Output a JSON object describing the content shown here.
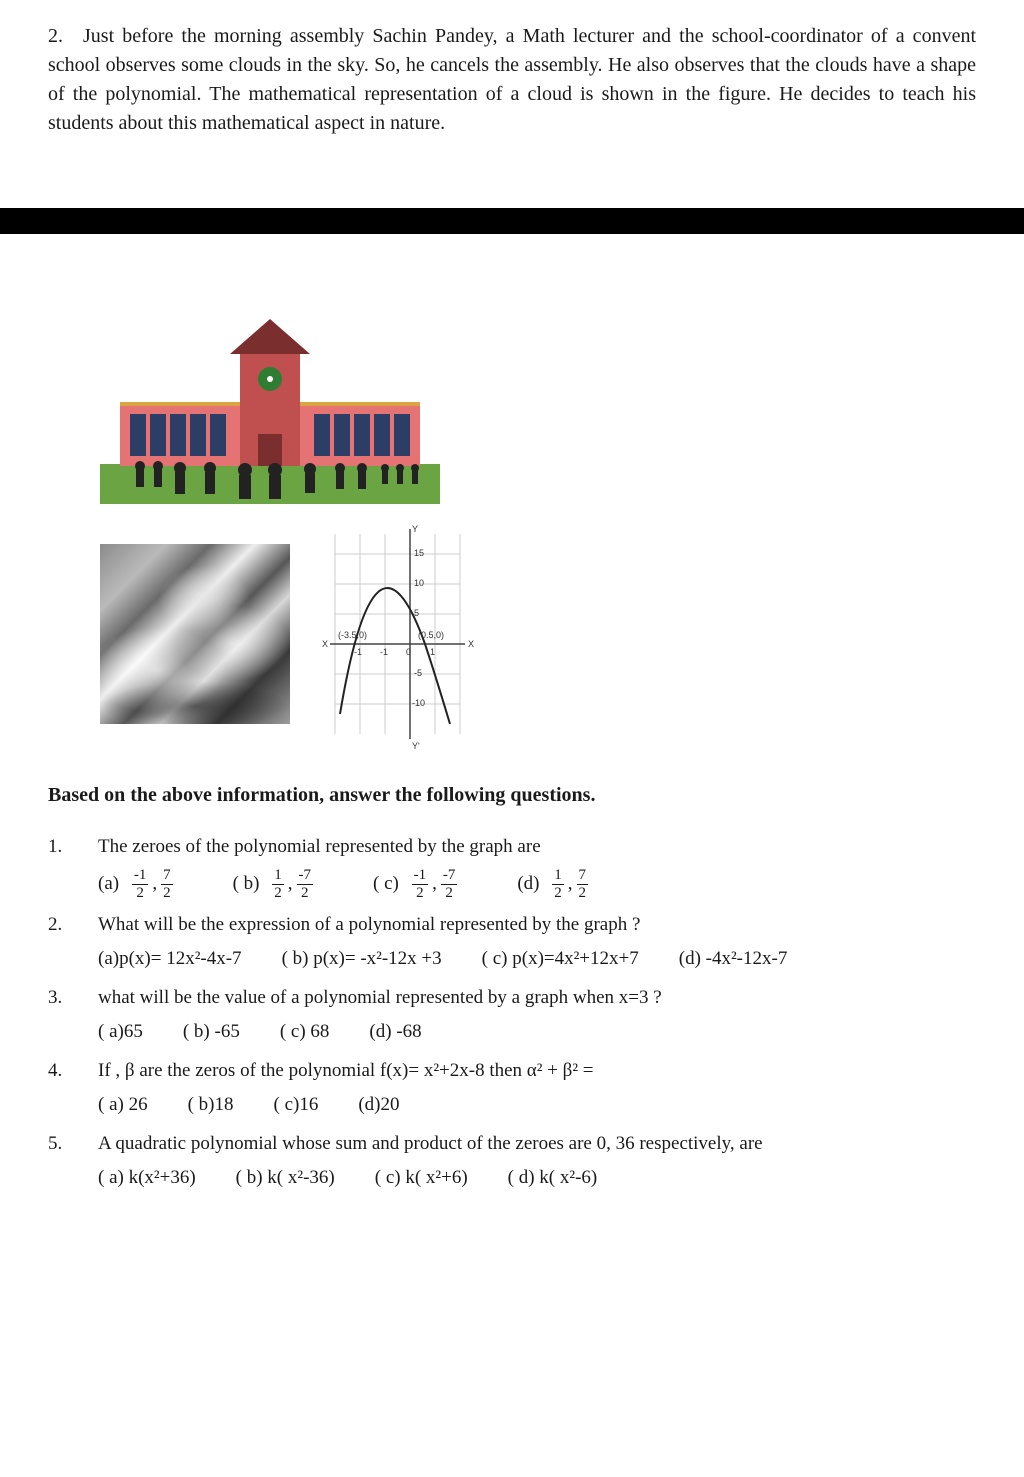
{
  "intro": {
    "number": "2.",
    "text": "Just before the morning assembly Sachin Pandey, a Math lecturer and the school-coordinator of a convent school observes some clouds in the sky. So, he cancels the assembly. He also observes that the clouds have a shape of the polynomial. The mathematical representation of a cloud is shown in the figure. He decides to teach his students about this mathematical aspect in nature."
  },
  "black_bar_color": "#000000",
  "school_illustration": {
    "colors": {
      "sky": "#ffffff",
      "grass": "#6aa443",
      "building": "#e57373",
      "building_dark": "#c04f4f",
      "roof": "#7b2e2e",
      "trim": "#d9a441",
      "window": "#2c3e66",
      "ground": "#333333",
      "clock_face": "#2e7d32"
    }
  },
  "graph": {
    "labels": {
      "yTop": "Y",
      "yBottom": "Y'",
      "xLeft": "X",
      "xRight": "X"
    },
    "yticks": [
      "15",
      "10",
      "5",
      "-5",
      "-10"
    ],
    "xticks": [
      "-1",
      "-1",
      "0",
      "1"
    ],
    "pointL": "(-3.5,0)",
    "pointR": "(0.5,0)",
    "axis_color": "#444444",
    "grid_color": "#cccccc",
    "curve_color": "#222222"
  },
  "section_heading": "Based on the above information, answer the following questions.",
  "questions": [
    {
      "n": "1.",
      "text": "The zeroes of the polynomial represented by the graph are",
      "opts_type": "frac",
      "opts": [
        {
          "label": "(a)",
          "a_num": "-1",
          "a_den": "2",
          "b_num": "7",
          "b_den": "2"
        },
        {
          "label": "( b)",
          "a_num": "1",
          "a_den": "2",
          "b_num": "-7",
          "b_den": "2"
        },
        {
          "label": "( c)",
          "a_num": "-1",
          "a_den": "2",
          "b_num": "-7",
          "b_den": "2"
        },
        {
          "label": "(d)",
          "a_num": "1",
          "a_den": "2",
          "b_num": "7",
          "b_den": "2"
        }
      ]
    },
    {
      "n": "2.",
      "text": "What will be the expression of a polynomial represented by the graph ?",
      "opts_type": "plain",
      "opts": [
        {
          "label": "(a)p(x)= 12x²-4x-7"
        },
        {
          "label": "( b) p(x)= -x²-12x +3"
        },
        {
          "label": "( c) p(x)=4x²+12x+7"
        },
        {
          "label": "(d) -4x²-12x-7"
        }
      ]
    },
    {
      "n": "3.",
      "text": "what will be the value of a polynomial  represented by a graph when x=3 ?",
      "opts_type": "plain",
      "opts": [
        {
          "label": "( a)65"
        },
        {
          "label": "( b) -65"
        },
        {
          "label": "( c) 68"
        },
        {
          "label": "(d) -68"
        }
      ]
    },
    {
      "n": "4.",
      "text": "If  , β are the zeros of the polynomial f(x)= x²+2x-8 then α² + β² =",
      "opts_type": "plain",
      "opts": [
        {
          "label": "( a) 26"
        },
        {
          "label": "( b)18"
        },
        {
          "label": "( c)16"
        },
        {
          "label": "(d)20"
        }
      ]
    },
    {
      "n": "5.",
      "text": "A quadratic polynomial whose sum and product of the zeroes are 0, 36 respectively, are",
      "opts_type": "plain",
      "opts": [
        {
          "label": "( a) k(x²+36)"
        },
        {
          "label": "( b) k( x²-36)"
        },
        {
          "label": "( c) k( x²+6)"
        },
        {
          "label": "( d) k( x²-6)"
        }
      ]
    }
  ]
}
